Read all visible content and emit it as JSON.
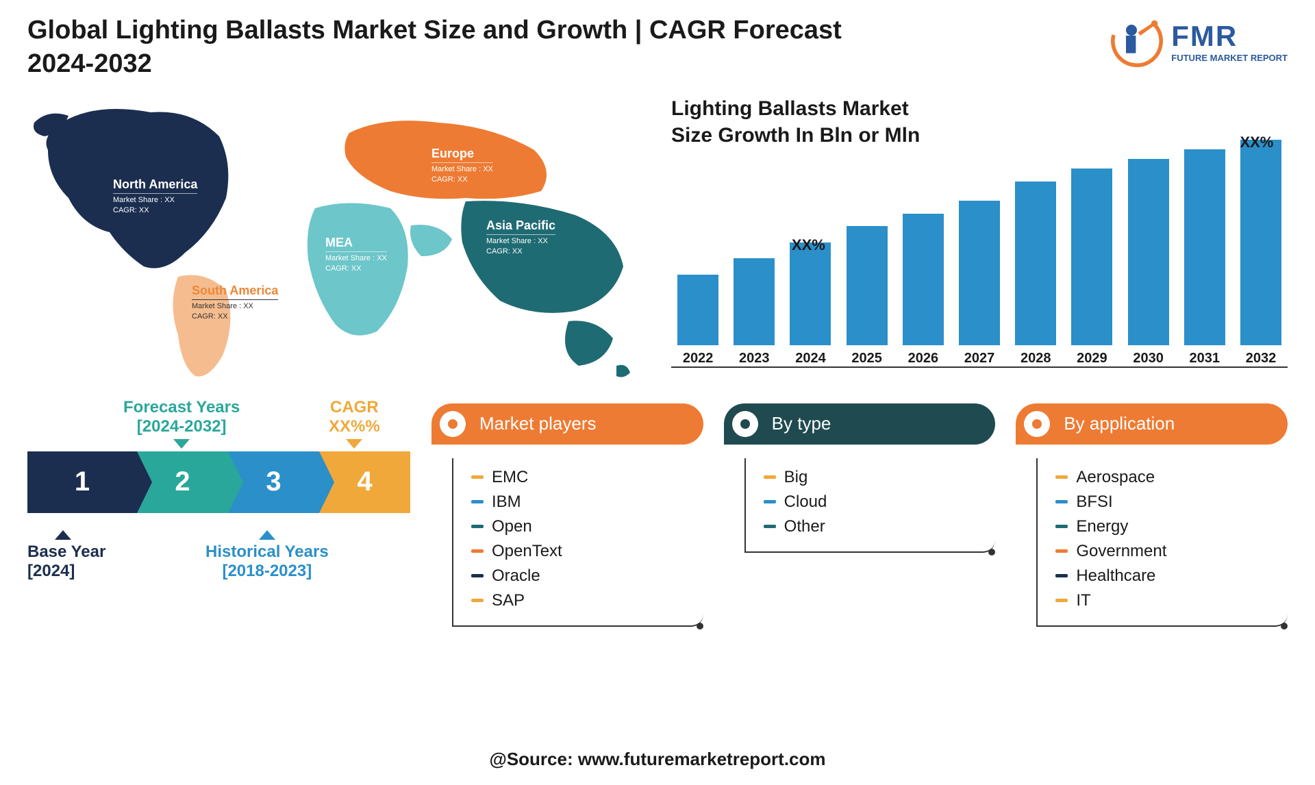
{
  "title": "Global Lighting Ballasts Market Size and Growth | CAGR Forecast 2024-2032",
  "logo": {
    "fmr": "FMR",
    "sub": "FUTURE MARKET REPORT",
    "icon_color": "#ee7b33",
    "text_color": "#2b5a9e"
  },
  "map": {
    "regions": {
      "north_america": {
        "name": "North America",
        "share": "Market Share : XX",
        "cagr": "CAGR: XX",
        "color": "#1b2e4f"
      },
      "south_america": {
        "name": "South America",
        "share": "Market Share : XX",
        "cagr": "CAGR: XX",
        "color": "#f5bd8f"
      },
      "europe": {
        "name": "Europe",
        "share": "Market Share : XX",
        "cagr": "CAGR: XX",
        "color": "#ee7b33"
      },
      "mea": {
        "name": "MEA",
        "share": "Market Share : XX",
        "cagr": "CAGR: XX",
        "color": "#6dc6c9"
      },
      "asia_pacific": {
        "name": "Asia Pacific",
        "share": "Market Share : XX",
        "cagr": "CAGR: XX",
        "color": "#1f6b73"
      }
    }
  },
  "chart": {
    "title": "Lighting Ballasts Market Size Growth In Bln or Mln",
    "type": "bar",
    "years": [
      "2022",
      "2023",
      "2024",
      "2025",
      "2026",
      "2027",
      "2028",
      "2029",
      "2030",
      "2031",
      "2032"
    ],
    "values": [
      110,
      135,
      160,
      185,
      205,
      225,
      255,
      275,
      290,
      305,
      320
    ],
    "bar_color": "#2b8fc9",
    "annotations": [
      {
        "text": "XX%",
        "bar_index": 2
      },
      {
        "text": "XX%",
        "bar_index": 10
      }
    ],
    "axis_color": "#333333",
    "label_fontsize": 20
  },
  "timeline": {
    "labels": {
      "forecast": {
        "text": "Forecast Years",
        "range": "[2024-2032]",
        "color": "#2aa79b"
      },
      "cagr": {
        "text": "CAGR",
        "range": "XX%%",
        "color": "#f0a83a"
      },
      "base": {
        "text": "Base Year",
        "range": "[2024]",
        "color": "#1b2e4f"
      },
      "hist": {
        "text": "Historical Years",
        "range": "[2018-2023]",
        "color": "#2b8fc9"
      }
    },
    "steps": [
      {
        "num": "1",
        "color": "#1b2e4f"
      },
      {
        "num": "2",
        "color": "#2aa79b"
      },
      {
        "num": "3",
        "color": "#2b8fc9"
      },
      {
        "num": "4",
        "color": "#f0a83a"
      }
    ]
  },
  "categories": [
    {
      "title": "Market players",
      "header_color": "#ee7b33",
      "dot_color": "#ee7b33",
      "items": [
        {
          "label": "EMC",
          "dash": "#f0a83a"
        },
        {
          "label": "IBM",
          "dash": "#2b8fc9"
        },
        {
          "label": "Open",
          "dash": "#1f6b73"
        },
        {
          "label": "OpenText",
          "dash": "#ee7b33"
        },
        {
          "label": "Oracle",
          "dash": "#1b2e4f"
        },
        {
          "label": "SAP",
          "dash": "#f0a83a"
        }
      ]
    },
    {
      "title": "By type",
      "header_color": "#1f4a50",
      "dot_color": "#1f4a50",
      "items": [
        {
          "label": "Big",
          "dash": "#f0a83a"
        },
        {
          "label": "Cloud",
          "dash": "#2b8fc9"
        },
        {
          "label": "Other",
          "dash": "#1f6b73"
        }
      ]
    },
    {
      "title": "By application",
      "header_color": "#ee7b33",
      "dot_color": "#ee7b33",
      "items": [
        {
          "label": "Aerospace",
          "dash": "#f0a83a"
        },
        {
          "label": "BFSI",
          "dash": "#2b8fc9"
        },
        {
          "label": "Energy",
          "dash": "#1f6b73"
        },
        {
          "label": "Government",
          "dash": "#ee7b33"
        },
        {
          "label": "Healthcare",
          "dash": "#1b2e4f"
        },
        {
          "label": "IT",
          "dash": "#f0a83a"
        }
      ]
    }
  ],
  "source": "@Source: www.futuremarketreport.com"
}
